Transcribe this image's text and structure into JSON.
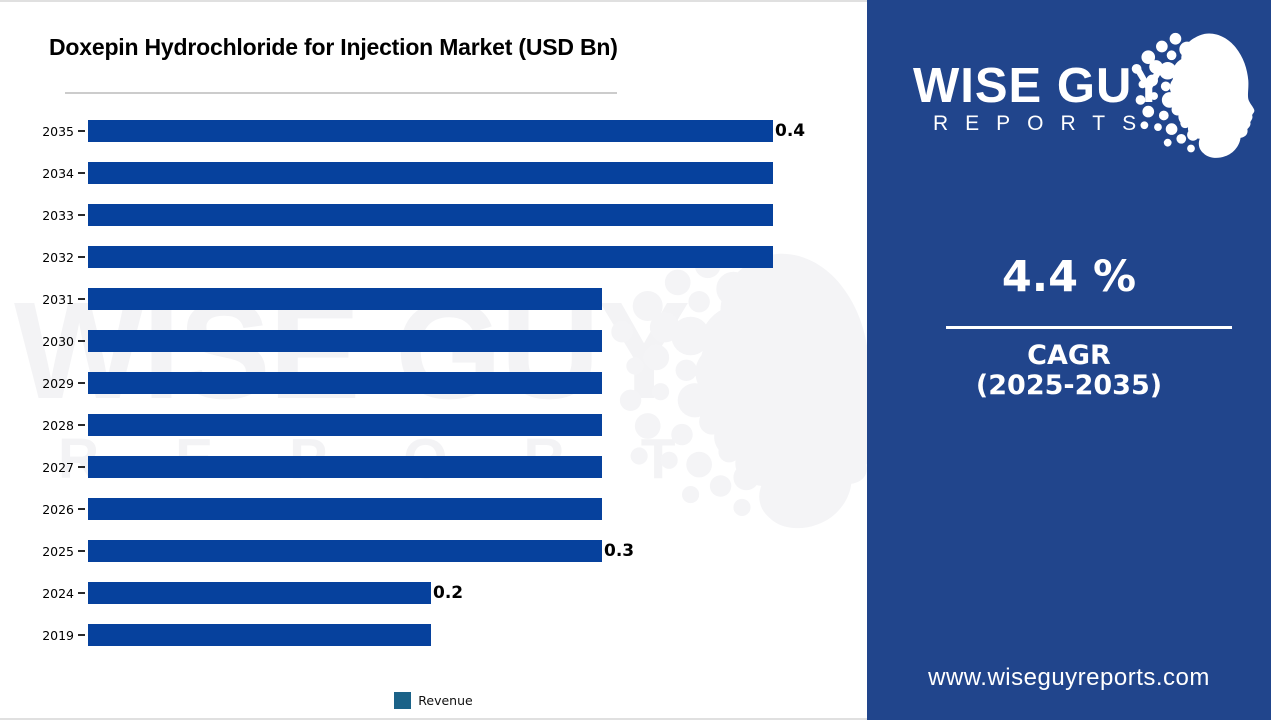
{
  "chart_data": {
    "type": "bar",
    "orientation": "horizontal",
    "title": "Doxepin Hydrochloride for Injection Market (USD Bn)",
    "unit": "USD Bn",
    "grid": false,
    "xlim": [
      0,
      0.44
    ],
    "legend": [
      "Revenue"
    ],
    "legend_position": "bottom-center",
    "categories": [
      "2035",
      "2034",
      "2033",
      "2032",
      "2031",
      "2030",
      "2029",
      "2028",
      "2027",
      "2026",
      "2025",
      "2024",
      "2019"
    ],
    "values": [
      0.4,
      0.4,
      0.4,
      0.4,
      0.3,
      0.3,
      0.3,
      0.3,
      0.3,
      0.3,
      0.3,
      0.2,
      0.2
    ],
    "series": [
      {
        "name": "Revenue",
        "year": "2035",
        "value": 0.4,
        "label": "0.4"
      },
      {
        "name": "Revenue",
        "year": "2034",
        "value": 0.4,
        "label": ""
      },
      {
        "name": "Revenue",
        "year": "2033",
        "value": 0.4,
        "label": ""
      },
      {
        "name": "Revenue",
        "year": "2032",
        "value": 0.4,
        "label": ""
      },
      {
        "name": "Revenue",
        "year": "2031",
        "value": 0.3,
        "label": ""
      },
      {
        "name": "Revenue",
        "year": "2030",
        "value": 0.3,
        "label": ""
      },
      {
        "name": "Revenue",
        "year": "2029",
        "value": 0.3,
        "label": ""
      },
      {
        "name": "Revenue",
        "year": "2028",
        "value": 0.3,
        "label": ""
      },
      {
        "name": "Revenue",
        "year": "2027",
        "value": 0.3,
        "label": ""
      },
      {
        "name": "Revenue",
        "year": "2026",
        "value": 0.3,
        "label": ""
      },
      {
        "name": "Revenue",
        "year": "2025",
        "value": 0.3,
        "label": "0.3"
      },
      {
        "name": "Revenue",
        "year": "2024",
        "value": 0.2,
        "label": "0.2"
      },
      {
        "name": "Revenue",
        "year": "2019",
        "value": 0.2,
        "label": ""
      }
    ],
    "bar_color": "#06419d",
    "legend_swatch_color": "#1b6288",
    "divider_color": "#cccccc"
  },
  "legend": {
    "revenue_label": "Revenue"
  },
  "watermark": {
    "line1": "WISE GUY",
    "line2": "REPORTS"
  },
  "panel": {
    "bg_color": "#21458c",
    "logo_line1": "WISE GUY",
    "logo_line2": "REPORTS",
    "cagr_value": "4.4 %",
    "cagr_label_line1": "CAGR",
    "cagr_label_line2": "(2025-2035)",
    "website": "www.wiseguyreports.com"
  }
}
